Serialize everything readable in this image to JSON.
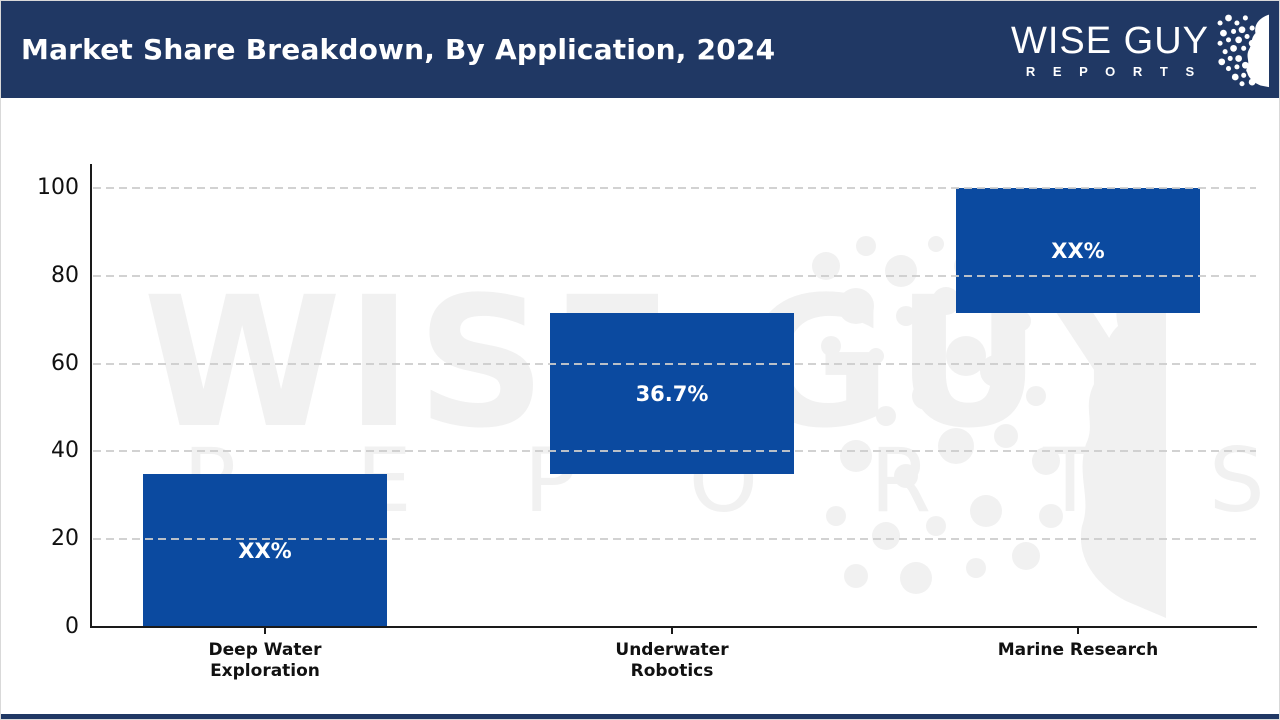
{
  "header": {
    "title": "Market Share Breakdown, By Application, 2024",
    "logo": {
      "line1": "WISE GUY",
      "line2": "R E P O R T S"
    }
  },
  "watermark": {
    "line1": "WISE GUY",
    "line2": "R E P O R T S"
  },
  "colors": {
    "header_bg": "#203864",
    "bar_fill": "#0b4aa0",
    "gridline": "#cdcdcd",
    "watermark": "#f1f1f1",
    "axis": "#1a1a1a"
  },
  "chart_data": {
    "type": "bar",
    "subtype": "floating-waterfall",
    "title": "Market Share Breakdown, By Application, 2024",
    "categories": [
      "Deep Water\nExploration",
      "Underwater\nRobotics",
      "Marine Research"
    ],
    "bars": [
      {
        "category": "Deep Water Exploration",
        "base": 0,
        "top": 34.8,
        "value": 34.8,
        "label": "XX%"
      },
      {
        "category": "Underwater Robotics",
        "base": 34.8,
        "top": 71.5,
        "value": 36.7,
        "label": "36.7%"
      },
      {
        "category": "Marine Research",
        "base": 71.5,
        "top": 100,
        "value": 28.5,
        "label": "XX%"
      }
    ],
    "ylim": [
      0,
      100
    ],
    "yticks": [
      0,
      20,
      40,
      60,
      80,
      100
    ],
    "grid": "dashed horizontal, drawn over bars",
    "legend": "none",
    "bar_value_text_color": "#ffffff"
  }
}
